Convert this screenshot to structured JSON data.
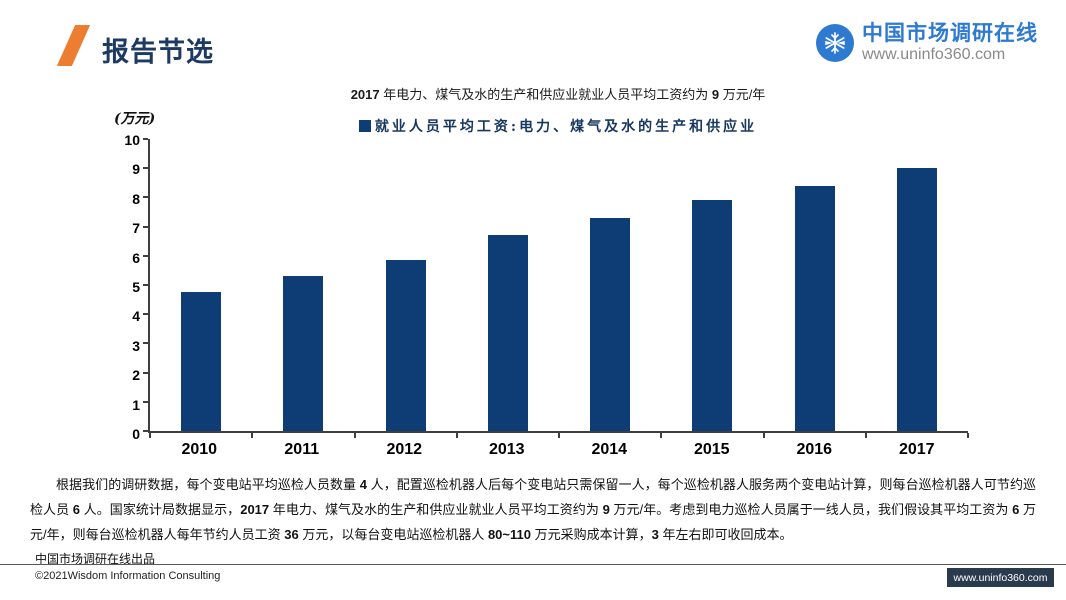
{
  "header": {
    "title": "报告节选",
    "logo_name": "中国市场调研在线",
    "logo_url": "www.uninfo360.com",
    "accent_orange": "#ED7D31",
    "title_navy": "#1c3a63",
    "logo_blue": "#2e7ad1"
  },
  "chart": {
    "title_segments": [
      {
        "t": "2017",
        "b": 1
      },
      {
        "t": " 年电力、煤气及水的生产和供应业就业人员平均工资约为 "
      },
      {
        "t": "9",
        "b": 1
      },
      {
        "t": " 万元/年"
      }
    ],
    "unit_label": "(万元)",
    "legend_label": "就业人员平均工资:电力、煤气及水的生产和供应业"
  },
  "chart_data": {
    "type": "bar",
    "title": "2017 年电力、煤气及水的生产和供应业就业人员平均工资约为 9 万元/年",
    "legend": [
      "就业人员平均工资:电力、煤气及水的生产和供应业"
    ],
    "legend_position": "top-center",
    "categories": [
      "2010",
      "2011",
      "2012",
      "2013",
      "2014",
      "2015",
      "2016",
      "2017"
    ],
    "values": [
      4.75,
      5.3,
      5.85,
      6.7,
      7.3,
      7.9,
      8.4,
      9.0
    ],
    "xlabel": "",
    "ylabel": "(万元)",
    "ylim": [
      0,
      10
    ],
    "ytick_step": 1,
    "grid": false,
    "bar_color": "#0e3c74"
  },
  "body": {
    "paragraph_segments": [
      {
        "t": "根据我们的调研数据，每个变电站平均巡检人员数量 "
      },
      {
        "t": "4",
        "b": 1
      },
      {
        "t": " 人，配置巡检机器人后每个变电站只需保留一人，每个巡检机器人服务两个变电站计算，则每台巡检机器人可节约巡检人员 "
      },
      {
        "t": "6",
        "b": 1
      },
      {
        "t": " 人。国家统计局数据显示，"
      },
      {
        "t": "2017",
        "b": 1
      },
      {
        "t": " 年电力、煤气及水的生产和供应业就业人员平均工资约为 "
      },
      {
        "t": "9",
        "b": 1
      },
      {
        "t": " 万元/年。考虑到电力巡检人员属于一线人员，我们假设其平均工资为 "
      },
      {
        "t": "6",
        "b": 1
      },
      {
        "t": " 万元/年，则每台巡检机器人每年节约人员工资 "
      },
      {
        "t": "36",
        "b": 1
      },
      {
        "t": " 万元，以每台变电站巡检机器人 "
      },
      {
        "t": "80~110",
        "b": 1
      },
      {
        "t": " 万元采购成本计算，"
      },
      {
        "t": "3",
        "b": 1
      },
      {
        "t": " 年左右即可收回成本。"
      }
    ]
  },
  "footer": {
    "producer": "中国市场调研在线出品",
    "copyright": "©2021Wisdom Information Consulting",
    "site_badge": "www.uninfo360.com",
    "badge_bg": "#2b3b4e"
  }
}
